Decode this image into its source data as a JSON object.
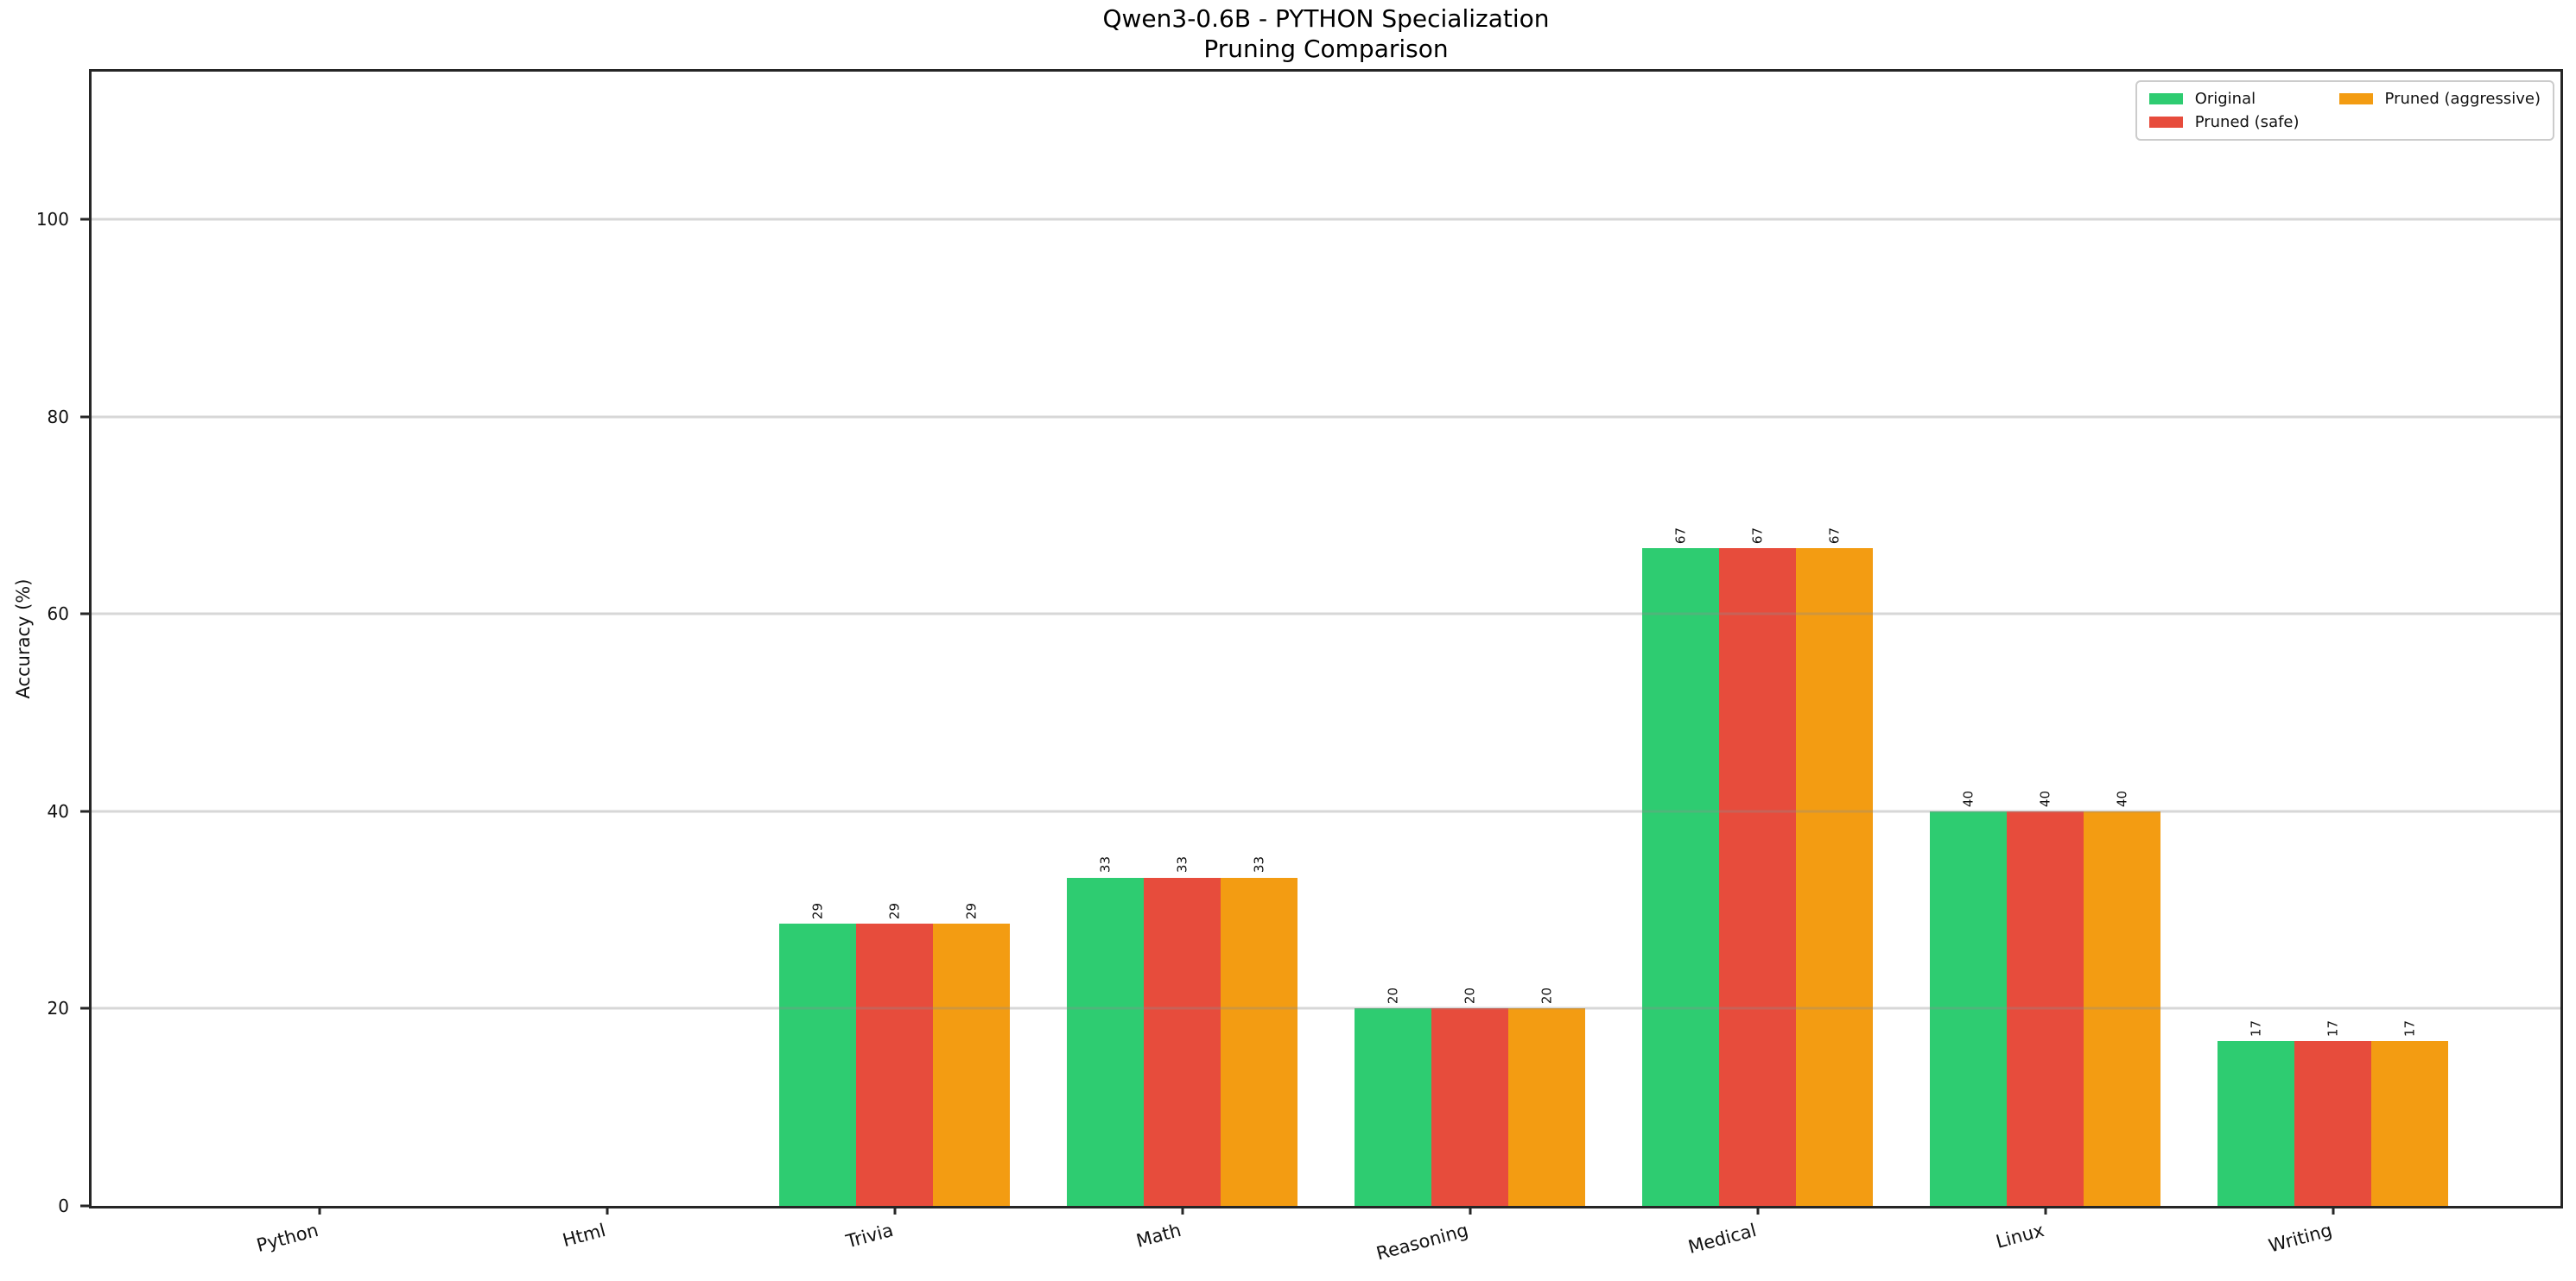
{
  "chart_data": {
    "type": "bar",
    "title": "Qwen3-0.6B - PYTHON Specialization\nPruning Comparison",
    "xlabel": "",
    "ylabel": "Accuracy (%)",
    "ylim": [
      0,
      115
    ],
    "yticks": [
      0,
      20,
      40,
      60,
      80,
      100
    ],
    "grid": true,
    "grid_color": "rgba(140,140,140,0.35)",
    "legend_position": "upper right",
    "legend_columns": 2,
    "categories": [
      "Python",
      "Html",
      "Trivia",
      "Math",
      "Reasoning",
      "Medical",
      "Linux",
      "Writing"
    ],
    "series": [
      {
        "name": "Original",
        "color": "#2ecc71",
        "values": [
          0,
          0,
          28.6,
          33.3,
          20.0,
          66.7,
          40.0,
          16.7
        ],
        "bar_labels": [
          "",
          "",
          "29",
          "33",
          "20",
          "67",
          "40",
          "17"
        ]
      },
      {
        "name": "Pruned (safe)",
        "color": "#e74c3c",
        "values": [
          0,
          0,
          28.6,
          33.3,
          20.0,
          66.7,
          40.0,
          16.7
        ],
        "bar_labels": [
          "",
          "",
          "29",
          "33",
          "20",
          "67",
          "40",
          "17"
        ]
      },
      {
        "name": "Pruned (aggressive)",
        "color": "#f39c12",
        "values": [
          0,
          0,
          28.6,
          33.3,
          20.0,
          66.7,
          40.0,
          16.7
        ],
        "bar_labels": [
          "",
          "",
          "29",
          "33",
          "20",
          "67",
          "40",
          "17"
        ]
      }
    ],
    "spine_color": "#262626",
    "background": "#ffffff"
  }
}
